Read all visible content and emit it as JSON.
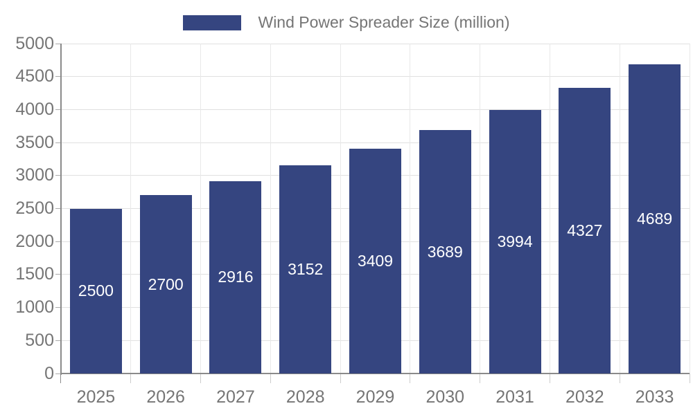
{
  "chart_data": {
    "type": "bar",
    "title": "Wind Power Spreader Size (million)",
    "categories": [
      "2025",
      "2026",
      "2027",
      "2028",
      "2029",
      "2030",
      "2031",
      "2032",
      "2033"
    ],
    "series": [
      {
        "name": "Wind Power Spreader Size (million)",
        "values": [
          2500,
          2700,
          2916,
          3152,
          3409,
          3689,
          3994,
          4327,
          4689
        ]
      }
    ],
    "xlabel": "",
    "ylabel": "",
    "ylim": [
      0,
      5000
    ],
    "ytick_step": 500,
    "yticks": [
      0,
      500,
      1000,
      1500,
      2000,
      2500,
      3000,
      3500,
      4000,
      4500,
      5000
    ],
    "grid": true,
    "legend_position": "top-center",
    "value_labels": "inside-center"
  },
  "legend": {
    "label": "Wind Power Spreader Size (million)"
  },
  "style": {
    "bar_color": "#354580",
    "bar_label_color": "#ffffff",
    "axis_label_color": "#757575",
    "legend_text_color": "#757575",
    "grid_color": "#e0e0e0",
    "grid_color_vertical": "#e8e8e8",
    "axis_line_color": "#8a8a8a",
    "background_color": "#ffffff"
  }
}
